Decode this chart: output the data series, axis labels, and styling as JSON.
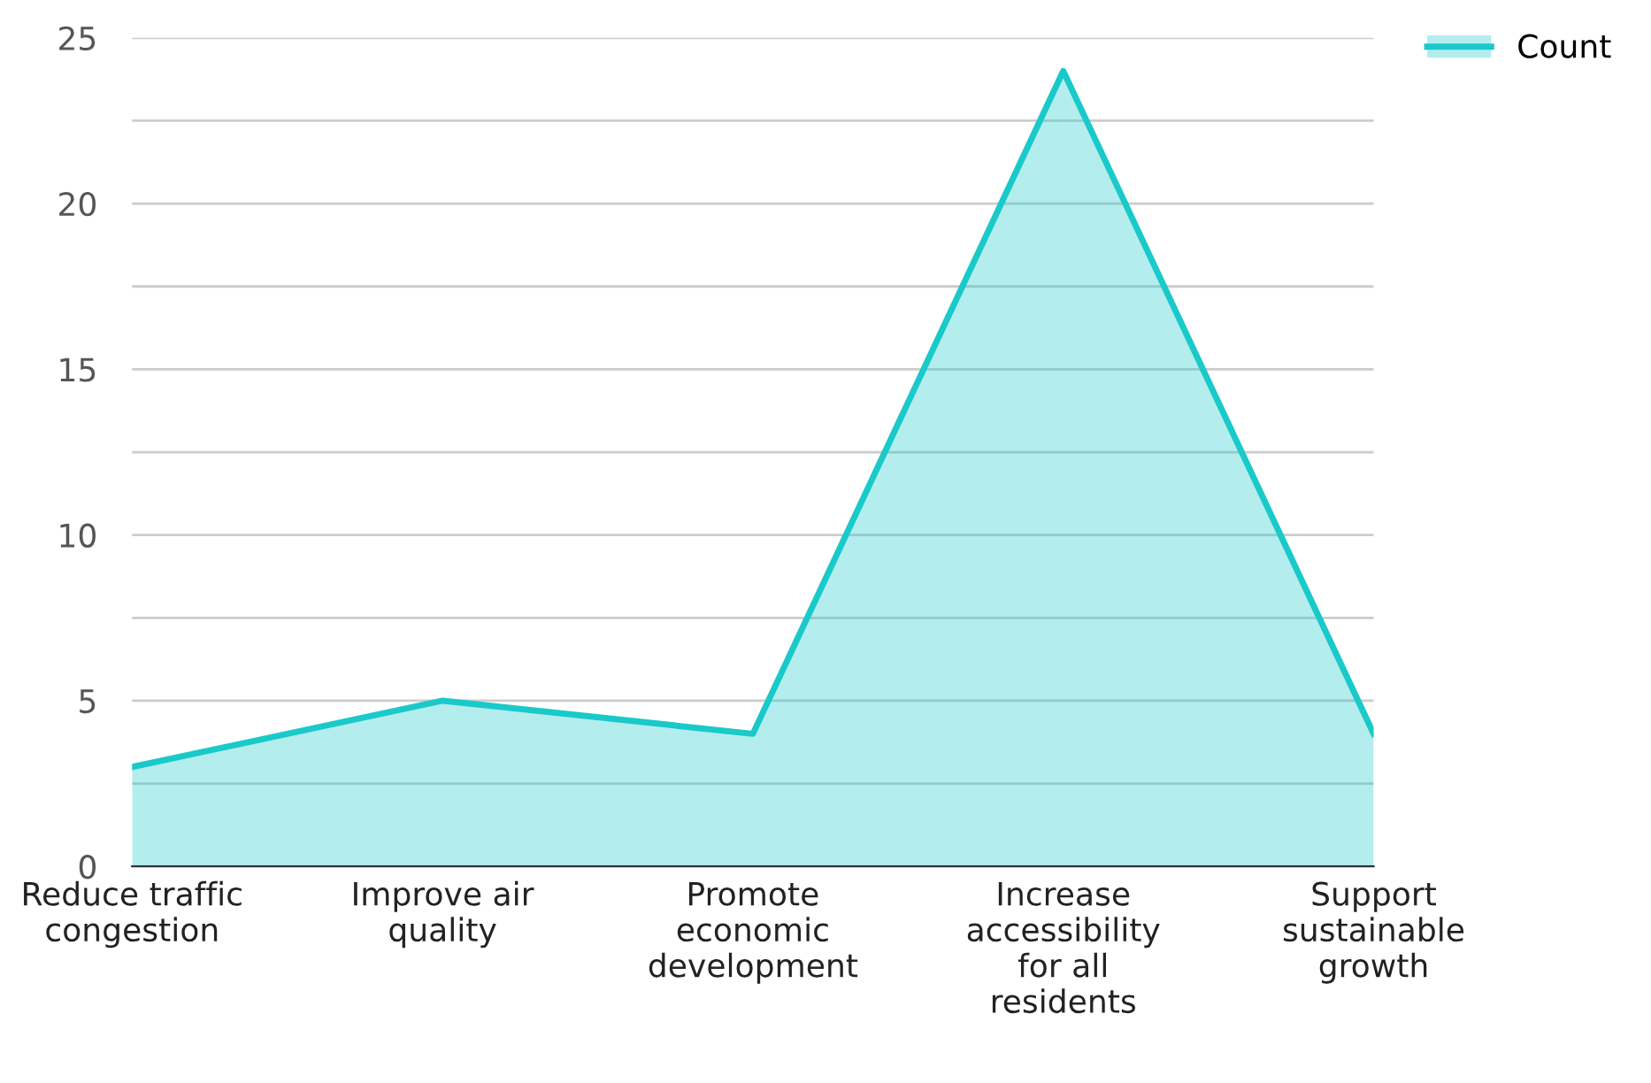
{
  "chart_data": {
    "type": "area",
    "categories": [
      "Reduce traffic congestion",
      "Improve air quality",
      "Promote economic development",
      "Increase accessibility for all residents",
      "Support sustainable growth"
    ],
    "series": [
      {
        "name": "Count",
        "color": "#1ac9c9",
        "values": [
          3,
          5,
          4,
          24,
          4
        ]
      }
    ],
    "ylim": [
      0,
      25
    ],
    "yticks": [
      0,
      {
        "value": 2.5,
        "label": null
      },
      5,
      {
        "value": 7.5,
        "label": null
      },
      10,
      {
        "value": 12.5,
        "label": null
      },
      15,
      {
        "value": 17.5,
        "label": null
      },
      20,
      {
        "value": 22.5,
        "label": null
      },
      25
    ],
    "grid": "y",
    "legend": "top right"
  }
}
